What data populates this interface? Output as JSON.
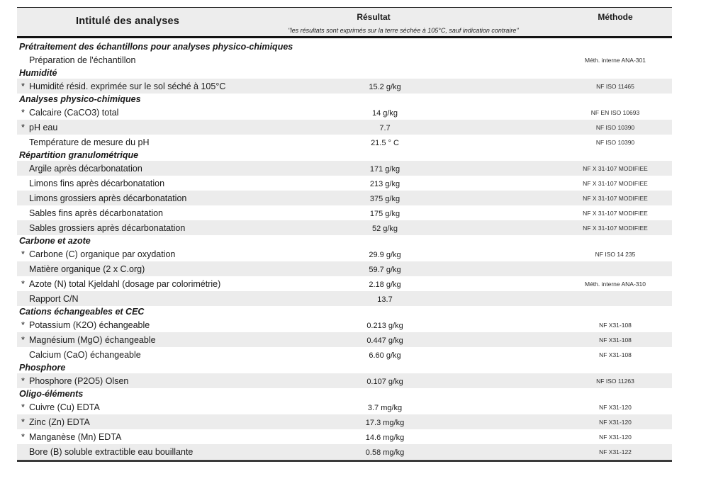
{
  "header": {
    "analyses_label": "Intitulé des analyses",
    "result_label": "Résultat",
    "result_note": "\"les résultats sont exprimés sur la terre séchée à 105°C, sauf indication contraire\"",
    "method_label": "Méthode"
  },
  "colors": {
    "row_shade": "#ececec",
    "header_bg": "#ededed",
    "rule_dark": "#141414"
  },
  "table": {
    "sections": [
      {
        "title": "Prétraitement des échantillons pour analyses physico-chimiques",
        "rows": [
          {
            "star": "",
            "label": "Préparation de l'échantillon",
            "result": "",
            "method": "Méth. interne ANA-301"
          }
        ]
      },
      {
        "title": "Humidité",
        "rows": [
          {
            "star": "*",
            "label": "Humidité résid. exprimée sur le sol séché à 105°C",
            "result": "15.2 g/kg",
            "method": "NF ISO 11465"
          }
        ]
      },
      {
        "title": "Analyses physico-chimiques",
        "rows": [
          {
            "star": "*",
            "label": "Calcaire (CaCO3) total",
            "result": "14 g/kg",
            "method": "NF EN ISO 10693"
          },
          {
            "star": "*",
            "label": "pH eau",
            "result": "7.7",
            "method": "NF ISO 10390"
          },
          {
            "star": "",
            "label": "Température de mesure du pH",
            "result": "21.5 ° C",
            "method": "NF ISO 10390"
          }
        ]
      },
      {
        "title": "Répartition granulométrique",
        "rows": [
          {
            "star": "",
            "label": "Argile après décarbonatation",
            "result": "171 g/kg",
            "method": "NF X 31-107 MODIFIEE"
          },
          {
            "star": "",
            "label": "Limons fins après décarbonatation",
            "result": "213 g/kg",
            "method": "NF X 31-107 MODIFIEE"
          },
          {
            "star": "",
            "label": "Limons grossiers après décarbonatation",
            "result": "375 g/kg",
            "method": "NF X 31-107 MODIFIEE"
          },
          {
            "star": "",
            "label": "Sables fins après décarbonatation",
            "result": "175 g/kg",
            "method": "NF X 31-107 MODIFIEE"
          },
          {
            "star": "",
            "label": "Sables grossiers après décarbonatation",
            "result": "52 g/kg",
            "method": "NF X 31-107 MODIFIEE"
          }
        ]
      },
      {
        "title": "Carbone et azote",
        "rows": [
          {
            "star": "*",
            "label": "Carbone (C) organique par oxydation",
            "result": "29.9 g/kg",
            "method": "NF ISO 14 235"
          },
          {
            "star": "",
            "label": "Matière organique (2 x C.org)",
            "result": "59.7 g/kg",
            "method": ""
          },
          {
            "star": "*",
            "label": "Azote (N) total Kjeldahl (dosage par colorimétrie)",
            "result": "2.18 g/kg",
            "method": "Méth. interne ANA-310"
          },
          {
            "star": "",
            "label": "Rapport C/N",
            "result": "13.7",
            "method": ""
          }
        ]
      },
      {
        "title": "Cations échangeables et CEC",
        "rows": [
          {
            "star": "*",
            "label": "Potassium (K2O) échangeable",
            "result": "0.213 g/kg",
            "method": "NF X31-108"
          },
          {
            "star": "*",
            "label": "Magnésium (MgO) échangeable",
            "result": "0.447 g/kg",
            "method": "NF X31-108"
          },
          {
            "star": "",
            "label": "Calcium (CaO) échangeable",
            "result": "6.60 g/kg",
            "method": "NF X31-108"
          }
        ]
      },
      {
        "title": "Phosphore",
        "rows": [
          {
            "star": "*",
            "label": "Phosphore (P2O5) Olsen",
            "result": "0.107 g/kg",
            "method": "NF ISO 11263"
          }
        ]
      },
      {
        "title": "Oligo-éléments",
        "rows": [
          {
            "star": "*",
            "label": "Cuivre (Cu) EDTA",
            "result": "3.7 mg/kg",
            "method": "NF X31-120"
          },
          {
            "star": "*",
            "label": "Zinc (Zn) EDTA",
            "result": "17.3 mg/kg",
            "method": "NF X31-120"
          },
          {
            "star": "*",
            "label": "Manganèse (Mn) EDTA",
            "result": "14.6 mg/kg",
            "method": "NF X31-120"
          },
          {
            "star": "",
            "label": "Bore (B) soluble extractible eau bouillante",
            "result": "0.58 mg/kg",
            "method": "NF X31-122"
          }
        ]
      }
    ]
  }
}
